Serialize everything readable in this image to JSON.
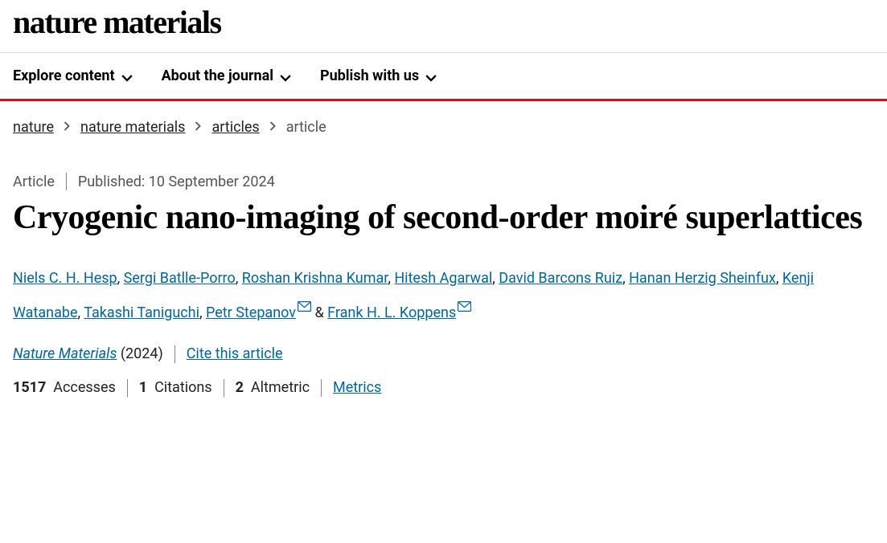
{
  "brand": {
    "text": "nature materials"
  },
  "topnav": {
    "items": [
      {
        "label": "Explore content"
      },
      {
        "label": "About the journal"
      },
      {
        "label": "Publish with us"
      }
    ]
  },
  "breadcrumb": {
    "items": [
      {
        "label": "nature",
        "link": true
      },
      {
        "label": "nature materials",
        "link": true
      },
      {
        "label": "articles",
        "link": true
      },
      {
        "label": "article",
        "link": false
      }
    ]
  },
  "meta": {
    "category": "Article",
    "published_label": "Published:",
    "published_date": "10 September 2024"
  },
  "title": "Cryogenic nano-imaging of second-order moiré superlattices",
  "authors": [
    {
      "name": "Niels C. H. Hesp",
      "corresponding": false
    },
    {
      "name": "Sergi Batlle-Porro",
      "corresponding": false
    },
    {
      "name": "Roshan Krishna Kumar",
      "corresponding": false
    },
    {
      "name": "Hitesh Agarwal",
      "corresponding": false
    },
    {
      "name": "David Barcons Ruiz",
      "corresponding": false
    },
    {
      "name": "Hanan Herzig Sheinfux",
      "corresponding": false
    },
    {
      "name": "Kenji Watanabe",
      "corresponding": false
    },
    {
      "name": "Takashi Taniguchi",
      "corresponding": false
    },
    {
      "name": "Petr Stepanov",
      "corresponding": true
    },
    {
      "name": "Frank H. L. Koppens",
      "corresponding": true
    }
  ],
  "publication": {
    "journal": "Nature Materials",
    "year": "(2024)",
    "cite_label": "Cite this article"
  },
  "metrics": {
    "accesses_count": "1517",
    "accesses_label": "Accesses",
    "citations_count": "1",
    "citations_label": "Citations",
    "altmetric_count": "2",
    "altmetric_label": "Altmetric",
    "metrics_link": "Metrics"
  },
  "colors": {
    "link": "#006699",
    "accent": "#e30613",
    "text": "#222222",
    "muted": "#555555"
  }
}
